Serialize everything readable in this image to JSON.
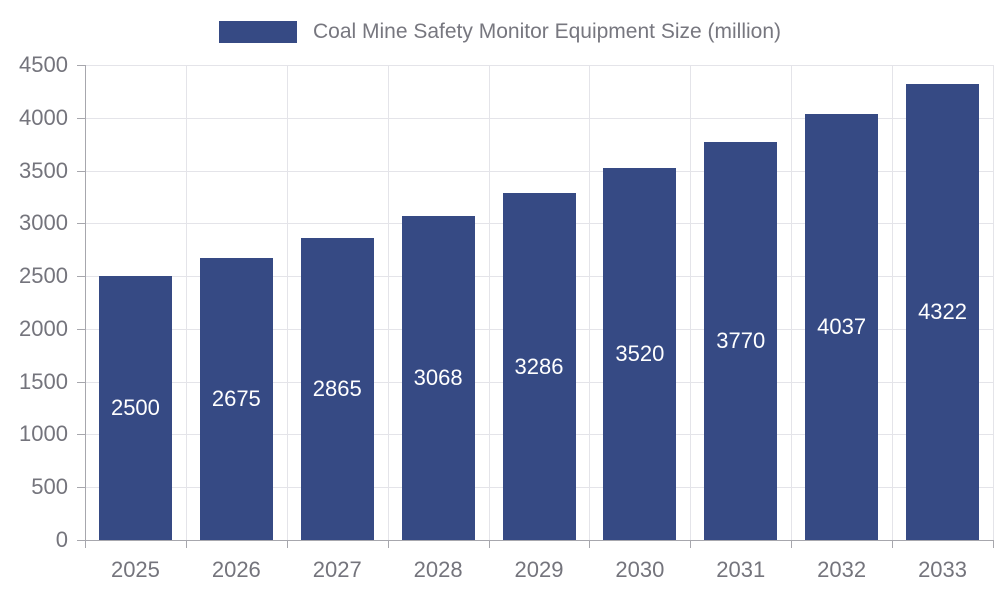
{
  "legend": {
    "label": "Coal Mine Safety Monitor Equipment Size (million)"
  },
  "chart_data": {
    "type": "bar",
    "title": "Coal Mine Safety Monitor Equipment Size (million)",
    "categories": [
      "2025",
      "2026",
      "2027",
      "2028",
      "2029",
      "2030",
      "2031",
      "2032",
      "2033"
    ],
    "values": [
      2500,
      2675,
      2865,
      3068,
      3286,
      3520,
      3770,
      4037,
      4322
    ],
    "xlabel": "",
    "ylabel": "",
    "ylim": [
      0,
      4500
    ],
    "ytick_step": 500,
    "grid": true,
    "legend_position": "top",
    "value_labels_position": "inside-center"
  },
  "colors": {
    "bar": "#364a84",
    "value_label": "#ffffff",
    "axis_line": "#a7a7ad",
    "grid_line": "#e4e4e9",
    "tick_text": "#74747c",
    "legend_text": "#77777f"
  }
}
